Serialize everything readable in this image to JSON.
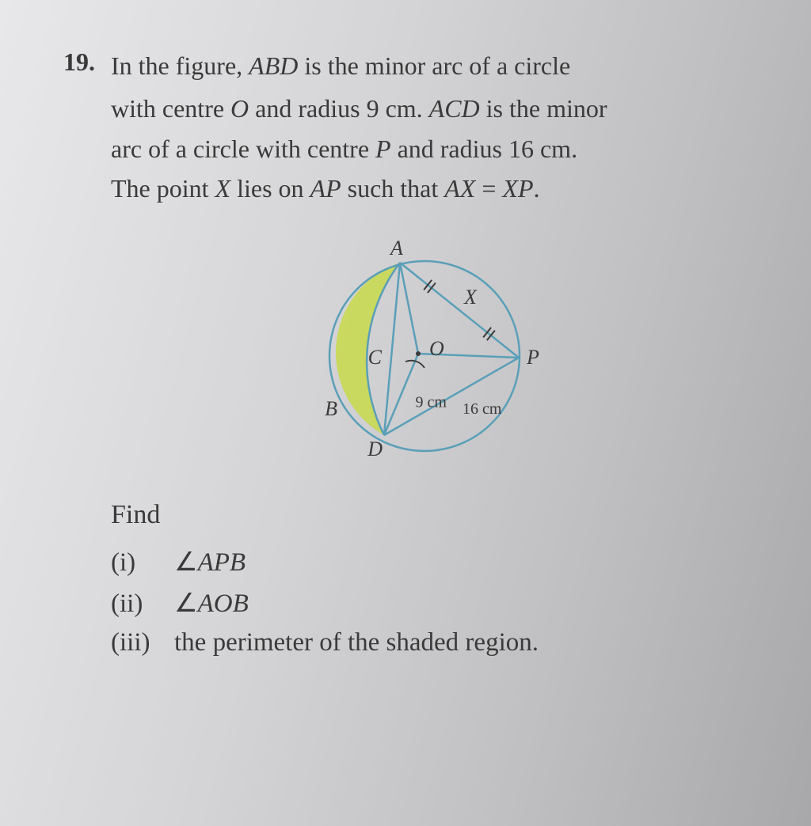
{
  "question": {
    "number": "19.",
    "line1_lead": "In the figure, ",
    "line1_abd": "ABD",
    "line1_rest": " is the minor arc of a circle",
    "line2_a": "with centre ",
    "line2_o": "O",
    "line2_b": " and radius 9 cm. ",
    "line2_acd": "ACD",
    "line2_c": " is the minor",
    "line3_a": "arc of a circle with centre ",
    "line3_p": "P",
    "line3_b": " and radius 16 cm.",
    "line4_a": "The point ",
    "line4_x": "X",
    "line4_b": " lies on ",
    "line4_ap": "AP",
    "line4_c": " such that ",
    "line4_eq_ax": "AX",
    "line4_eq_mid": " = ",
    "line4_eq_xp": "XP",
    "line4_end": "."
  },
  "figure": {
    "type": "diagram",
    "circle_radius_o": 9,
    "circle_radius_p": 16,
    "colors": {
      "circle_stroke": "#5a9fb8",
      "triangle_stroke": "#5a9fb8",
      "chord_stroke": "#5a9fb8",
      "arc_abd_fill": "#c8d94a",
      "label_color": "#3a3a3a",
      "tick_color": "#3a3a3a"
    },
    "labels": {
      "A": "A",
      "B": "B",
      "C": "C",
      "D": "D",
      "O": "O",
      "P": "P",
      "X": "X",
      "r_o": "9 cm",
      "r_p": "16 cm"
    },
    "stroke_width": 2.5
  },
  "find": {
    "label": "Find",
    "items": [
      {
        "roman": "(i)",
        "symbol": "∠",
        "text": "APB"
      },
      {
        "roman": "(ii)",
        "symbol": "∠",
        "text": "AOB"
      }
    ],
    "item3": {
      "roman": "(iii)",
      "text": "the perimeter of the shaded region."
    }
  }
}
